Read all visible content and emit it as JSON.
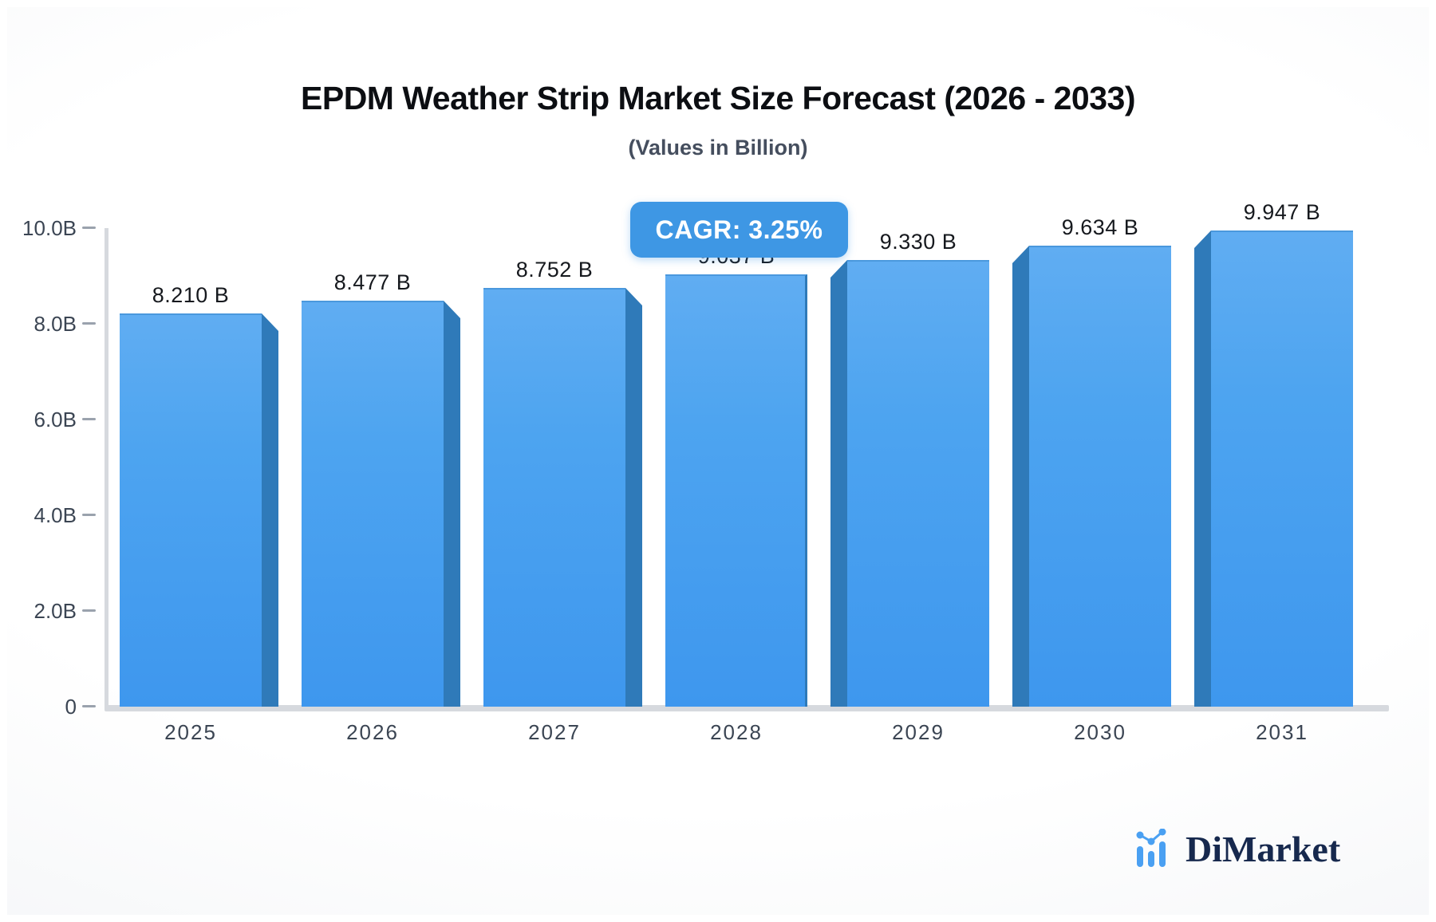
{
  "chart_data": {
    "type": "bar",
    "title": "EPDM Weather Strip Market Size Forecast (2026 - 2033)",
    "subtitle": "(Values in Billion)",
    "categories": [
      "2025",
      "2026",
      "2027",
      "2028",
      "2029",
      "2030",
      "2031"
    ],
    "values": [
      8.21,
      8.477,
      8.752,
      9.037,
      9.33,
      9.634,
      9.947
    ],
    "value_labels": [
      "8.210 B",
      "8.477 B",
      "8.752 B",
      "9.037 B",
      "9.330 B",
      "9.634 B",
      "9.947 B"
    ],
    "y_ticks": [
      {
        "label": "10.0B",
        "value": 10
      },
      {
        "label": "8.0B",
        "value": 8
      },
      {
        "label": "6.0B",
        "value": 6
      },
      {
        "label": "4.0B",
        "value": 4
      },
      {
        "label": "2.0B",
        "value": 2
      },
      {
        "label": "0",
        "value": 0
      }
    ],
    "ylim": [
      0,
      10
    ],
    "xlabel": "",
    "ylabel": "",
    "grid": false,
    "legend": false,
    "cagr_badge": "CAGR: 3.25%",
    "colors": {
      "bar_face_top": "#60adf2",
      "bar_face_bottom": "#3e97ee",
      "bar_side": "#2f7ab9",
      "axis": "#d6d9de",
      "tick": "#9aa2ad",
      "badge_bg": "#3e97e4",
      "badge_text": "#ffffff",
      "value_label": "#16191e",
      "axis_label": "#3b4553",
      "logo_blue": "#4aa0f2",
      "logo_navy": "#17294e"
    }
  },
  "footer": {
    "logo_text": "DiMarket"
  }
}
